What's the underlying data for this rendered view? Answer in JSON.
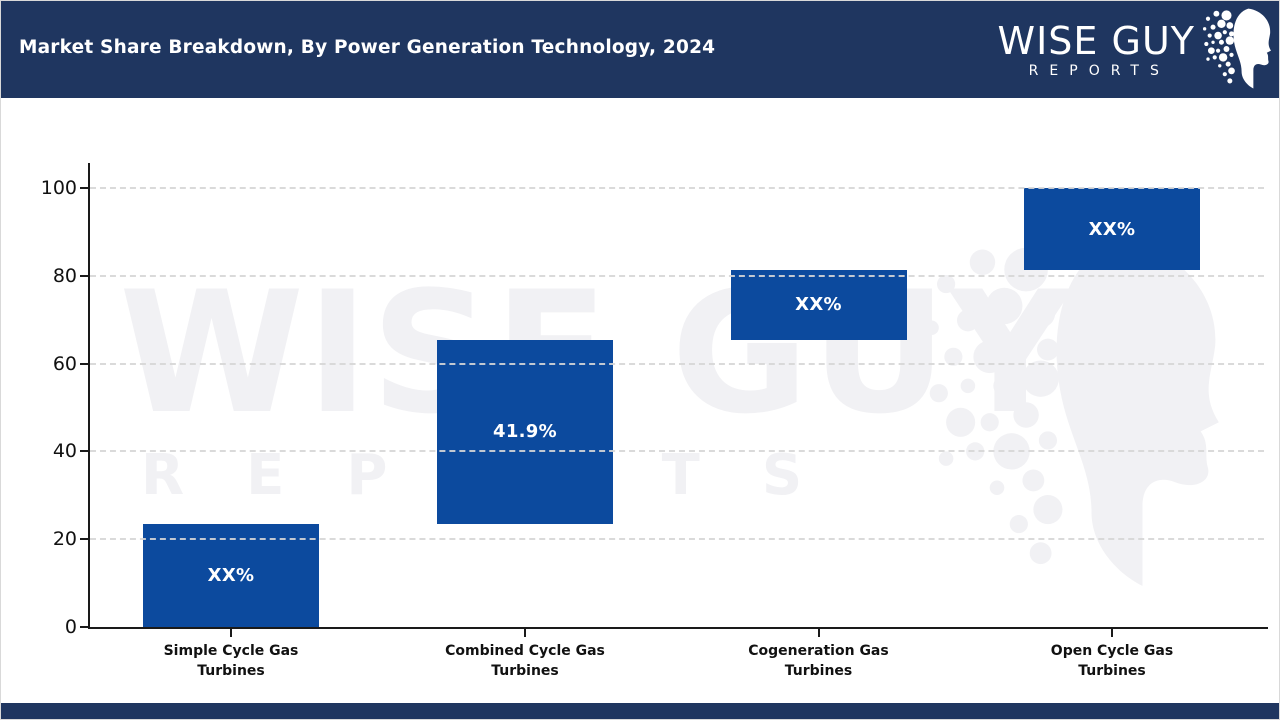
{
  "header": {
    "title": "Market Share Breakdown, By Power Generation Technology, 2024",
    "logo": {
      "line1": "WISE GUY",
      "line2": "REPORTS"
    }
  },
  "watermark": {
    "line1": "WISE GUY",
    "line2": "REPORTS"
  },
  "colors": {
    "header_bg": "#1f3660",
    "footer_bg": "#1f3660",
    "bar": "#0c4a9e",
    "bar_label_text": "#ffffff",
    "axis": "#1a1a1a",
    "gridline": "#d6d6d6",
    "tick_text": "#111111",
    "watermark": "#f1f1f4"
  },
  "chart_data": {
    "type": "bar",
    "subtype": "floating-waterfall",
    "title": "Market Share Breakdown, By Power Generation Technology, 2024",
    "xlabel": "",
    "ylabel": "",
    "ylim": [
      0,
      100
    ],
    "yticks": [
      0,
      20,
      40,
      60,
      80,
      100
    ],
    "grid": "horizontal-dashed",
    "legend": "none",
    "categories": [
      "Simple Cycle Gas Turbines",
      "Combined Cycle Gas Turbines",
      "Cogeneration Gas Turbines",
      "Open Cycle Gas Turbines"
    ],
    "bars": [
      {
        "category_lines": [
          "Simple Cycle Gas",
          "Turbines"
        ],
        "value_label": "XX%",
        "start": 0,
        "end": 23.5
      },
      {
        "category_lines": [
          "Combined Cycle Gas",
          "Turbines"
        ],
        "value_label": "41.9%",
        "start": 23.5,
        "end": 65.4
      },
      {
        "category_lines": [
          "Cogeneration Gas",
          "Turbines"
        ],
        "value_label": "XX%",
        "start": 65.4,
        "end": 81.3
      },
      {
        "category_lines": [
          "Open Cycle Gas",
          "Turbines"
        ],
        "value_label": "XX%",
        "start": 81.3,
        "end": 100
      }
    ]
  }
}
